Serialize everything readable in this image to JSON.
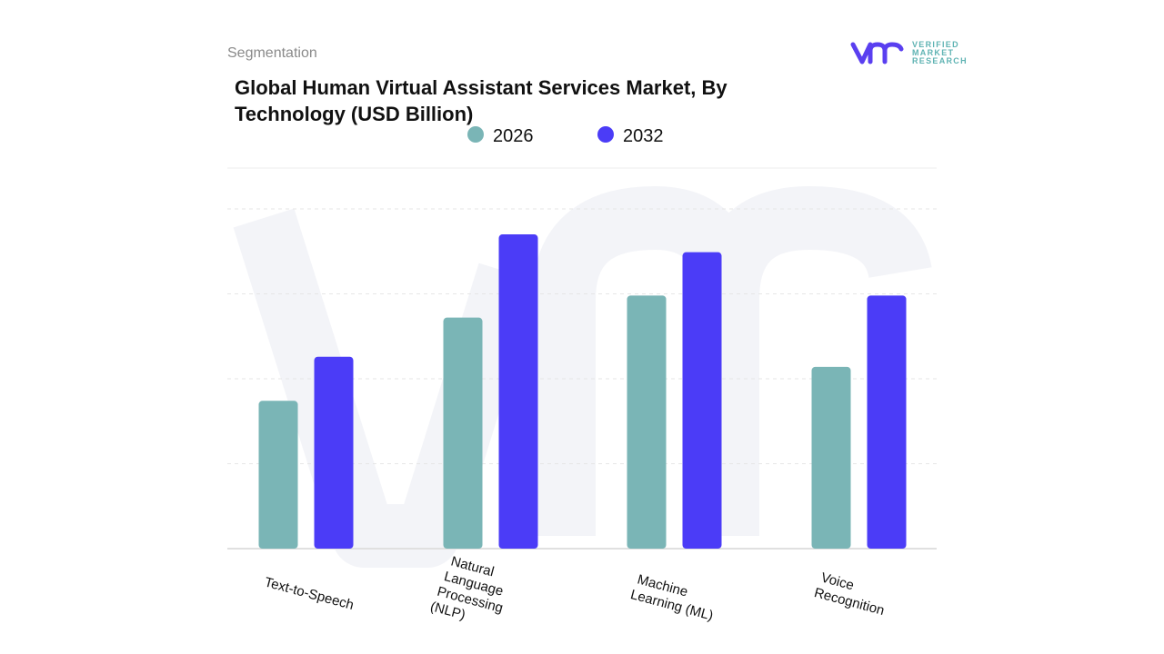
{
  "header": {
    "section": "Segmentation",
    "logo_text": [
      "VERIFIED",
      "MARKET",
      "RESEARCH"
    ]
  },
  "colors": {
    "2026": "#7ab5b6",
    "2032": "#4b3cf7",
    "logo_mark": "#5a3ff0",
    "logo_text": "#5fb3b3"
  },
  "chart_data": {
    "type": "bar",
    "title": "Global Human Virtual Assistant Services Market, By Technology (USD Billion)",
    "categories": [
      "Text-to-Speech",
      "Natural Language Processing (NLP)",
      "Machine Learning (ML)",
      "Voice Recognition"
    ],
    "category_lines": [
      [
        "Text-to-Speech"
      ],
      [
        "Natural",
        "Language",
        "Processing",
        "(NLP)"
      ],
      [
        "Machine",
        "Learning (ML)"
      ],
      [
        "Voice",
        "Recognition"
      ]
    ],
    "series": [
      {
        "name": "2026",
        "values": [
          1.74,
          2.72,
          2.98,
          2.14
        ]
      },
      {
        "name": "2032",
        "values": [
          2.26,
          3.7,
          3.49,
          2.98
        ]
      }
    ],
    "ylim": [
      0,
      4.5
    ],
    "grid": true,
    "legend": "top-center",
    "y_axis_labels_shown": false
  }
}
